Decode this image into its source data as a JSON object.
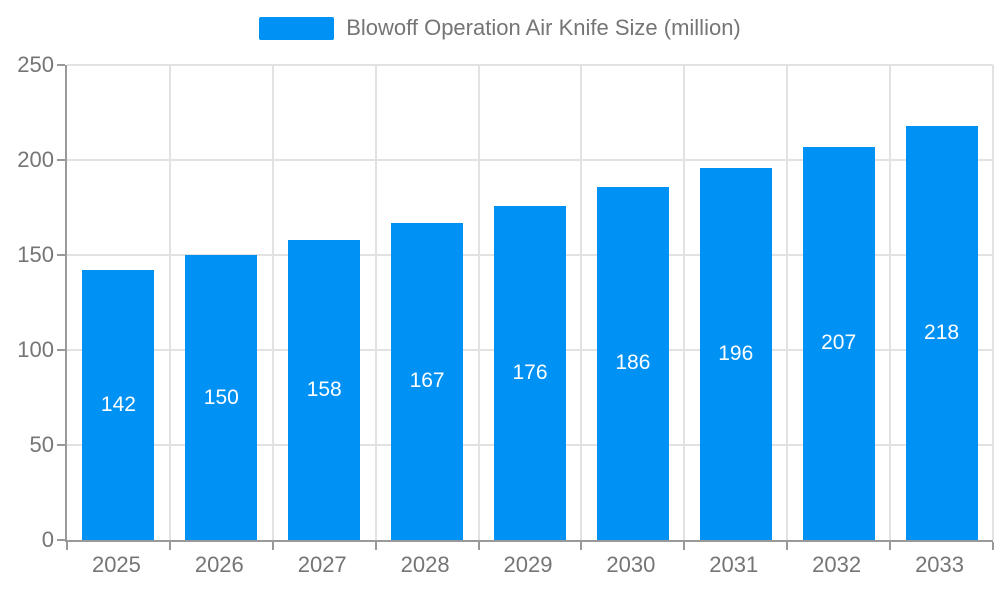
{
  "legend": {
    "label": "Blowoff Operation Air Knife Size (million)"
  },
  "chart_data": {
    "type": "bar",
    "title": "Blowoff Operation Air Knife Size (million)",
    "categories": [
      "2025",
      "2026",
      "2027",
      "2028",
      "2029",
      "2030",
      "2031",
      "2032",
      "2033"
    ],
    "values": [
      142,
      150,
      158,
      167,
      176,
      186,
      196,
      207,
      218
    ],
    "xlabel": "",
    "ylabel": "",
    "ylim": [
      0,
      250
    ],
    "yticks": [
      0,
      50,
      100,
      150,
      200,
      250
    ],
    "grid": true,
    "legend_position": "top-center",
    "bar_slot_fill": 0.7,
    "value_labels": "centered-inside-white"
  },
  "colors": {
    "bar": "#0091f5",
    "axis": "#999999",
    "grid": "#e2e2e2",
    "text": "#757575",
    "value-label": "#ffffff",
    "background": "#ffffff"
  }
}
